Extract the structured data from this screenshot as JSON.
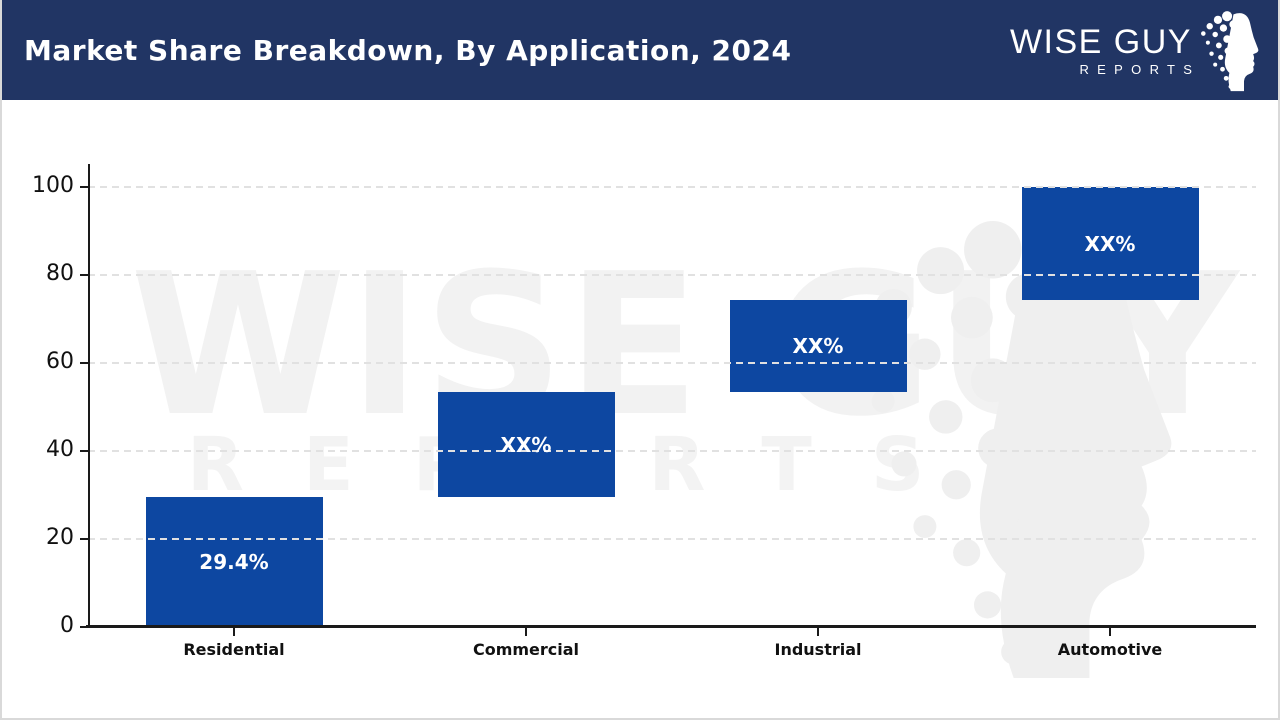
{
  "header": {
    "title": "Market Share Breakdown, By Application, 2024",
    "bg_color": "#213564",
    "logo": {
      "line1": "WISE GUY",
      "line2": "REPORTS"
    }
  },
  "watermark": {
    "line1": "WISE GUY",
    "line2": "REPORTS"
  },
  "chart_data": {
    "type": "bar",
    "subtype": "waterfall-floating-bars",
    "title": "Market Share Breakdown, By Application, 2024",
    "categories": [
      "Residential",
      "Commercial",
      "Industrial",
      "Automotive"
    ],
    "segments": [
      {
        "category": "Residential",
        "start": 0,
        "end": 29.4,
        "label": "29.4%"
      },
      {
        "category": "Commercial",
        "start": 29.4,
        "end": 53.3,
        "label": "XX%"
      },
      {
        "category": "Industrial",
        "start": 53.3,
        "end": 74.3,
        "label": "XX%"
      },
      {
        "category": "Automotive",
        "start": 74.3,
        "end": 100,
        "label": "XX%"
      }
    ],
    "values_increment": [
      29.4,
      23.9,
      21.0,
      25.7
    ],
    "yticks": [
      0,
      20,
      40,
      60,
      80,
      100
    ],
    "ylim": [
      0,
      105
    ],
    "xlabel": "",
    "ylabel": "",
    "grid": "horizontal-dashed",
    "legend": "none",
    "bar_color": "#0d47a1",
    "bar_label_color": "#ffffff",
    "grid_color": "#e1e1e1",
    "axis_color": "#1a1a1a",
    "watermark_color": "#f2f2f2",
    "page_border_color": "#d9d9d9"
  }
}
